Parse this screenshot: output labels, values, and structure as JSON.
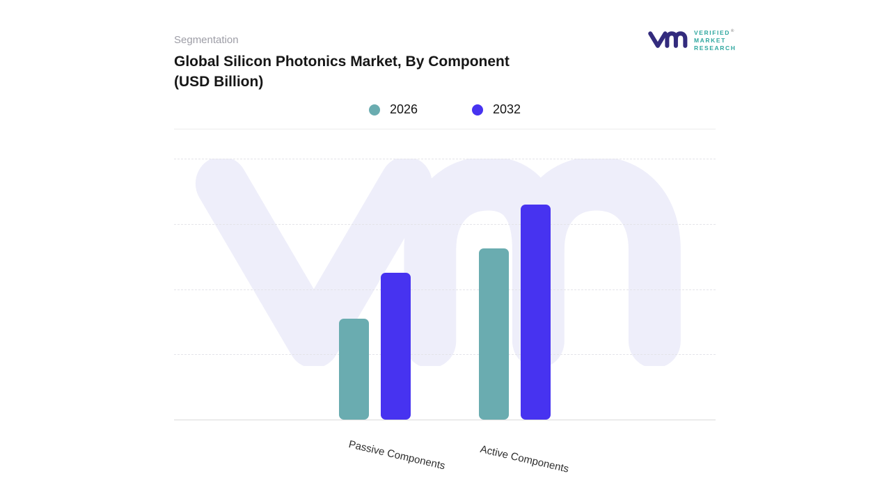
{
  "header": {
    "eyebrow": "Segmentation",
    "title_line1": "Global Silicon Photonics Market, By Component",
    "title_line2": "(USD Billion)"
  },
  "brand": {
    "name_lines": [
      "VERIFIED",
      "MARKET",
      "RESEARCH"
    ],
    "registered_mark": "®",
    "monogram_color": "#332B7D",
    "text_color": "#2FA79F"
  },
  "legend": {
    "items": [
      {
        "label": "2026",
        "color": "#6AACB0"
      },
      {
        "label": "2032",
        "color": "#4733F0"
      }
    ]
  },
  "chart_data": {
    "type": "bar",
    "title": "Global Silicon Photonics Market, By Component (USD Billion)",
    "categories": [
      "Passive Components",
      "Active Components"
    ],
    "series": [
      {
        "name": "2026",
        "color": "#6AACB0",
        "values": [
          1.55,
          2.62
        ]
      },
      {
        "name": "2032",
        "color": "#4733F0",
        "values": [
          2.25,
          3.3
        ]
      }
    ],
    "xlabel": "",
    "ylabel": "",
    "ylim": [
      0,
      4
    ],
    "y_axis_labels_visible": false,
    "gridlines": "horizontal-dashed",
    "legend_position": "top-center",
    "accent_colors": {
      "teal": "#6AACB0",
      "blue": "#4733F0",
      "watermark": "#EEEEFA"
    }
  }
}
